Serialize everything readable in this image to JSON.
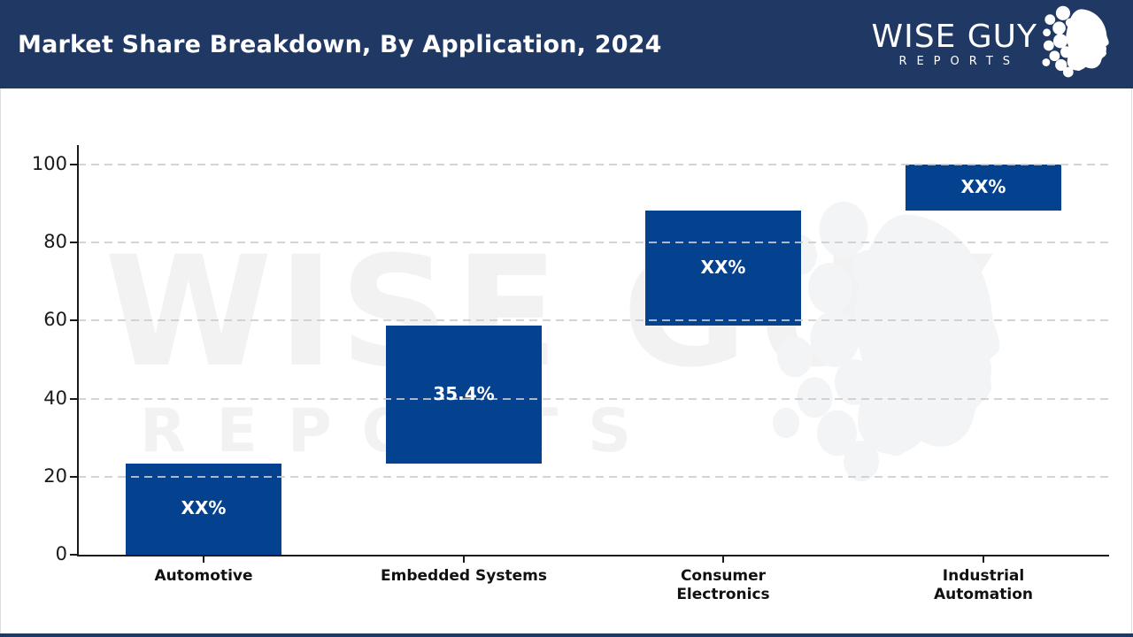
{
  "header": {
    "title": "Market Share Breakdown, By Application, 2024",
    "logo": {
      "line1": "WISE GUY",
      "line2": "REPORTS"
    }
  },
  "watermark": {
    "line1": "WISE GUY",
    "line2": "REPORTS"
  },
  "colors": {
    "header_bg": "#203864",
    "bar": "#04418f",
    "bar_label": "#ffffff",
    "grid": "#cccccc",
    "axis": "#1a1a1a",
    "tick_label": "#1a1a1a",
    "watermark": "#f2f2f2"
  },
  "chart_data": {
    "type": "bar",
    "subtype": "waterfall",
    "title": "Market Share Breakdown, By Application, 2024",
    "categories": [
      "Automotive",
      "Embedded Systems",
      "Consumer Electronics",
      "Industrial Automation"
    ],
    "segments": [
      {
        "category": "Automotive",
        "category_lines": [
          "Automotive"
        ],
        "start": 0,
        "end": 23.4,
        "value_label": "XX%"
      },
      {
        "category": "Embedded Systems",
        "category_lines": [
          "Embedded Systems"
        ],
        "start": 23.4,
        "end": 58.8,
        "value_label": "35.4%"
      },
      {
        "category": "Consumer Electronics",
        "category_lines": [
          "Consumer",
          "Electronics"
        ],
        "start": 58.8,
        "end": 88.2,
        "value_label": "XX%"
      },
      {
        "category": "Industrial Automation",
        "category_lines": [
          "Industrial",
          "Automation"
        ],
        "start": 88.2,
        "end": 100,
        "value_label": "XX%"
      }
    ],
    "ylim": [
      0,
      100
    ],
    "yticks": [
      0,
      20,
      40,
      60,
      80,
      100
    ],
    "xlabel": "",
    "ylabel": "",
    "grid": "horizontal-dashed, drawn above bars",
    "legend": "none"
  }
}
